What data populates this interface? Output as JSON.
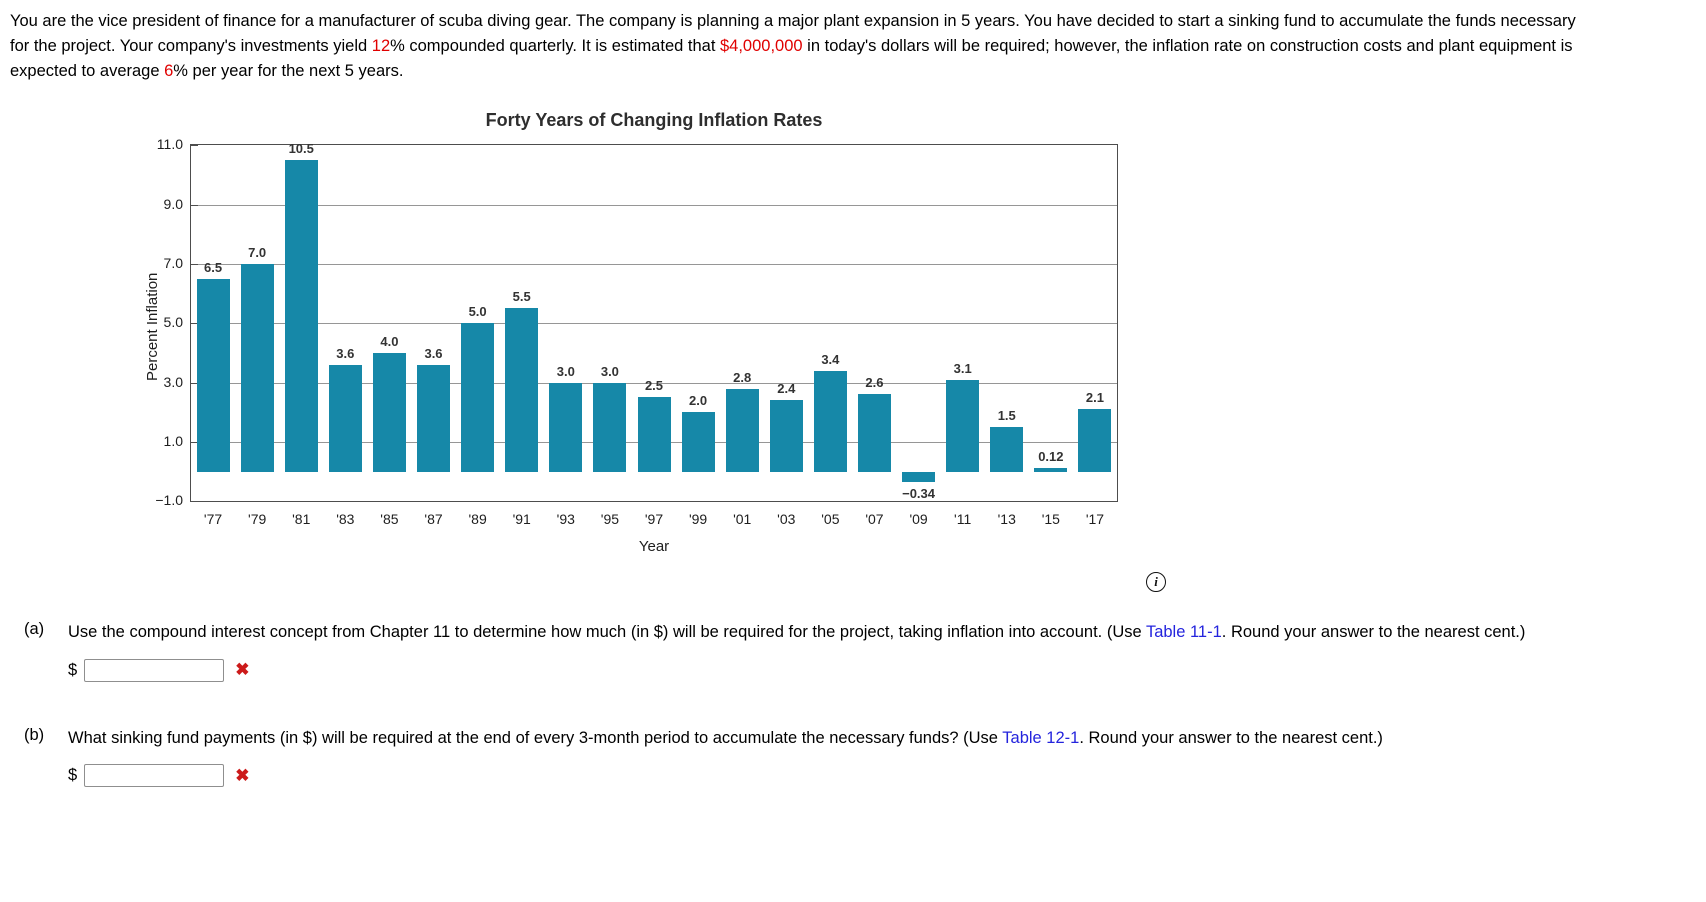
{
  "colors": {
    "red": "#e00000",
    "link": "#2424dd",
    "bar": "#1688a8",
    "xmark": "#cc1a1a"
  },
  "intro": {
    "segments": [
      {
        "text": "You are the vice president of finance for a manufacturer of scuba diving gear. The company is planning a major plant expansion in 5 years. You have decided to start a sinking fund to accumulate the funds necessary for the project. Your company's investments yield "
      },
      {
        "text": "12",
        "red": true
      },
      {
        "text": "% compounded quarterly. It is estimated that "
      },
      {
        "text": "$4,000,000",
        "red": true
      },
      {
        "text": " in today's dollars will be required; however, the inflation rate on construction costs and plant equipment is expected to average "
      },
      {
        "text": "6",
        "red": true
      },
      {
        "text": "% per year for the next 5 years."
      }
    ]
  },
  "chart_data": {
    "type": "bar",
    "title": "Forty Years of Changing Inflation Rates",
    "xlabel": "Year",
    "ylabel": "Percent Inflation",
    "categories": [
      "'77",
      "'79",
      "'81",
      "'83",
      "'85",
      "'87",
      "'89",
      "'91",
      "'93",
      "'95",
      "'97",
      "'99",
      "'01",
      "'03",
      "'05",
      "'07",
      "'09",
      "'11",
      "'13",
      "'15",
      "'17"
    ],
    "values": [
      6.5,
      7.0,
      10.5,
      3.6,
      4.0,
      3.6,
      5.0,
      5.5,
      3.0,
      3.0,
      2.5,
      2.0,
      2.8,
      2.4,
      3.4,
      2.6,
      -0.34,
      3.1,
      1.5,
      0.12,
      2.1
    ],
    "labels": [
      "6.5",
      "7.0",
      "10.5",
      "3.6",
      "4.0",
      "3.6",
      "5.0",
      "5.5",
      "3.0",
      "3.0",
      "2.5",
      "2.0",
      "2.8",
      "2.4",
      "3.4",
      "2.6",
      "−0.34",
      "3.1",
      "1.5",
      "0.12",
      "2.1"
    ],
    "ylim": [
      -1.0,
      11.0
    ],
    "yticks": [
      {
        "value": 11,
        "label": "11.0"
      },
      {
        "value": 9,
        "label": "9.0"
      },
      {
        "value": 7,
        "label": "7.0"
      },
      {
        "value": 5,
        "label": "5.0"
      },
      {
        "value": 3,
        "label": "3.0"
      },
      {
        "value": 1,
        "label": "1.0"
      },
      {
        "value": -1,
        "label": "−1.0"
      }
    ],
    "gridlines": [
      9,
      7,
      5,
      3,
      1
    ],
    "grid": true,
    "legend": "none"
  },
  "info_icon": {
    "glyph": "i"
  },
  "questions": {
    "a": {
      "label": "(a)",
      "segments": [
        {
          "text": "Use the compound interest concept from Chapter 11 to determine how much (in $) will be required for the project, taking inflation into account. (Use "
        },
        {
          "text": "Table 11-1",
          "link": true
        },
        {
          "text": ". Round your answer to the nearest cent.)"
        }
      ],
      "currency": "$",
      "input_value": "",
      "status_icon": "✖"
    },
    "b": {
      "label": "(b)",
      "segments": [
        {
          "text": "What sinking fund payments (in $) will be required at the end of every 3-month period to accumulate the necessary funds? (Use "
        },
        {
          "text": "Table 12-1",
          "link": true
        },
        {
          "text": ". Round your answer to the nearest cent.)"
        }
      ],
      "currency": "$",
      "input_value": "",
      "status_icon": "✖"
    }
  }
}
